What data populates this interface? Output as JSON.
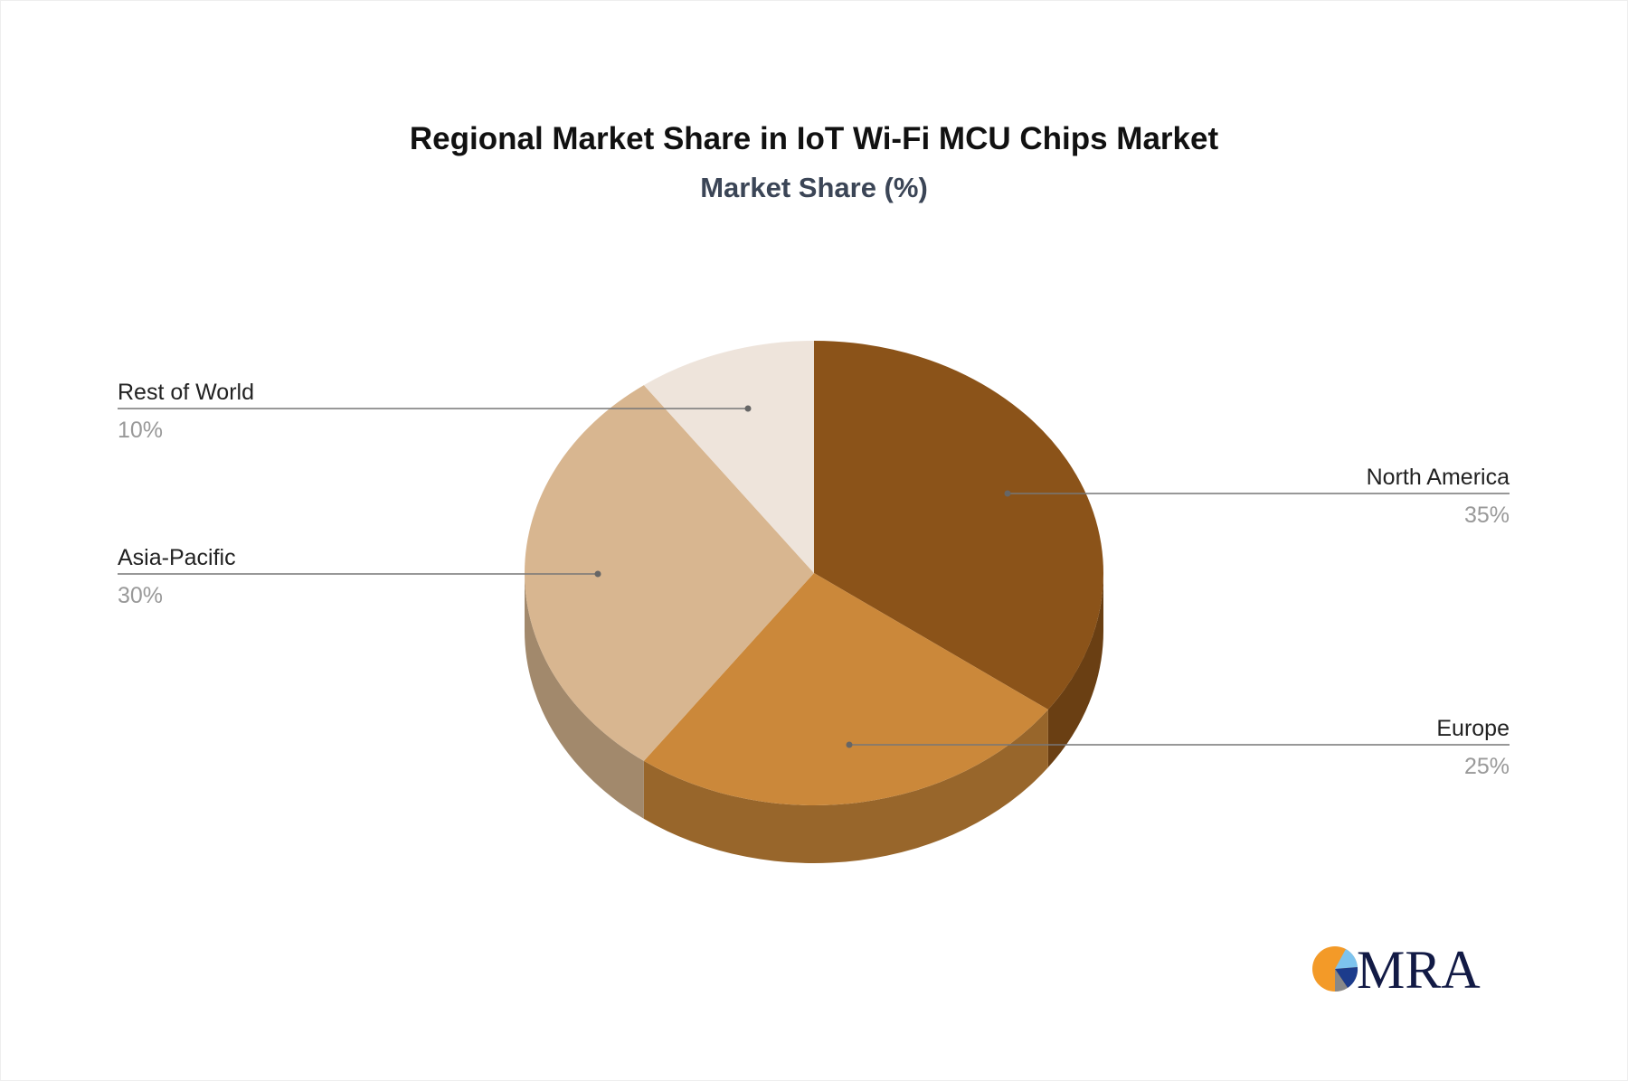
{
  "chart_data": {
    "type": "pie",
    "title": "Regional Market Share in IoT Wi-Fi MCU Chips Market",
    "subtitle": "Market Share (%)",
    "style": "3d",
    "slices": [
      {
        "label": "North America",
        "value": 35,
        "display": "35%",
        "color": "#8B5319",
        "side_color": "#6A3F13"
      },
      {
        "label": "Europe",
        "value": 25,
        "display": "25%",
        "color": "#CB883A",
        "side_color": "#98662B"
      },
      {
        "label": "Asia-Pacific",
        "value": 30,
        "display": "30%",
        "color": "#D8B690",
        "side_color": "#A2896C"
      },
      {
        "label": "Rest of World",
        "value": 10,
        "display": "10%",
        "color": "#EEE4DB",
        "side_color": "#B3ABA4"
      }
    ]
  },
  "brand": {
    "logo_text": "MRA"
  }
}
